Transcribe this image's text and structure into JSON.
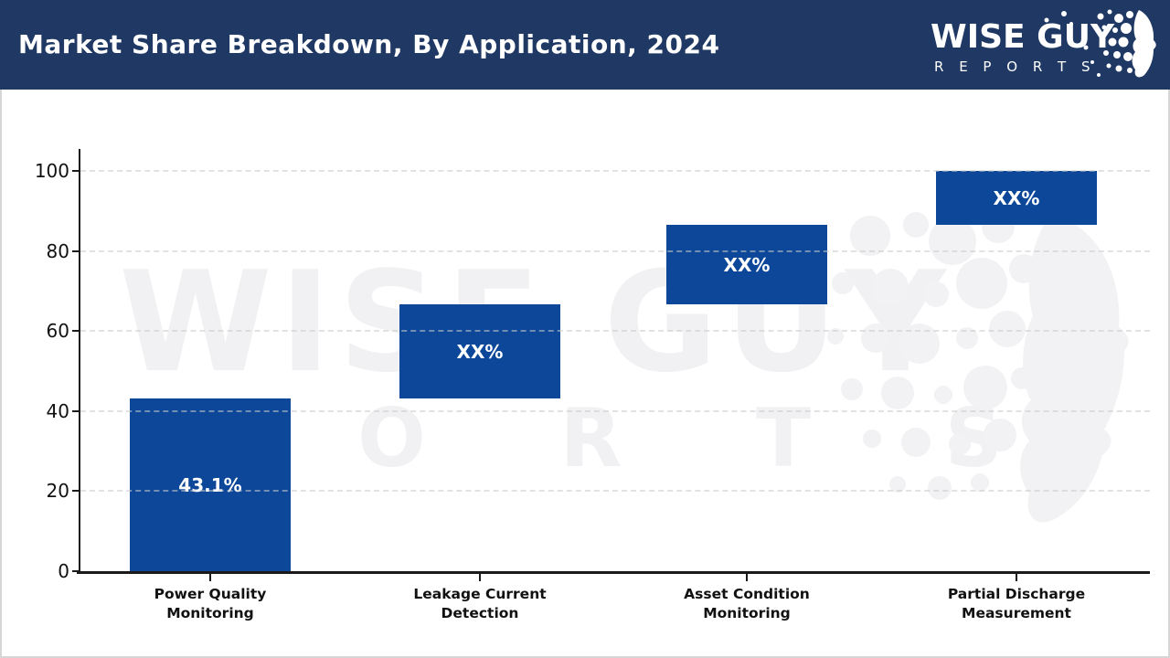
{
  "header": {
    "title": "Market Share Breakdown, By Application, 2024",
    "logo": {
      "line1": "WISE GUY",
      "line2": "R E P O R T S"
    }
  },
  "watermark": {
    "line1": "WISE GUY",
    "line2": "P O R T S"
  },
  "colors": {
    "header_bg": "#1f3864",
    "bar": "#0d4799",
    "bar_label_text": "#ffffff",
    "grid": "#d9d9d9",
    "axis": "#1a1a1a",
    "tick_text": "#111111",
    "watermark": "#f1f1f3",
    "page_border": "#d6d6d6"
  },
  "chart_data": {
    "type": "bar",
    "subtype": "waterfall",
    "title": "Market Share Breakdown, By Application, 2024",
    "categories": [
      "Power Quality Monitoring",
      "Leakage Current Detection",
      "Asset Condition Monitoring",
      "Partial Discharge Measurement"
    ],
    "category_lines": [
      [
        "Power Quality",
        "Monitoring"
      ],
      [
        "Leakage Current",
        "Detection"
      ],
      [
        "Asset Condition",
        "Monitoring"
      ],
      [
        "Partial Discharge",
        "Measurement"
      ]
    ],
    "segments": [
      {
        "category": "Power Quality Monitoring",
        "start": 0,
        "end": 43.1,
        "label": "43.1%"
      },
      {
        "category": "Leakage Current Detection",
        "start": 43.1,
        "end": 66.6,
        "label": "XX%"
      },
      {
        "category": "Asset Condition Monitoring",
        "start": 66.6,
        "end": 86.5,
        "label": "XX%"
      },
      {
        "category": "Partial Discharge Measurement",
        "start": 86.5,
        "end": 100,
        "label": "XX%"
      }
    ],
    "yticks": [
      0,
      20,
      40,
      60,
      80,
      100
    ],
    "ylim": [
      0,
      100
    ],
    "xlabel": "",
    "ylabel": "",
    "grid": "horizontal-dashed-on-top",
    "legend": "none"
  }
}
